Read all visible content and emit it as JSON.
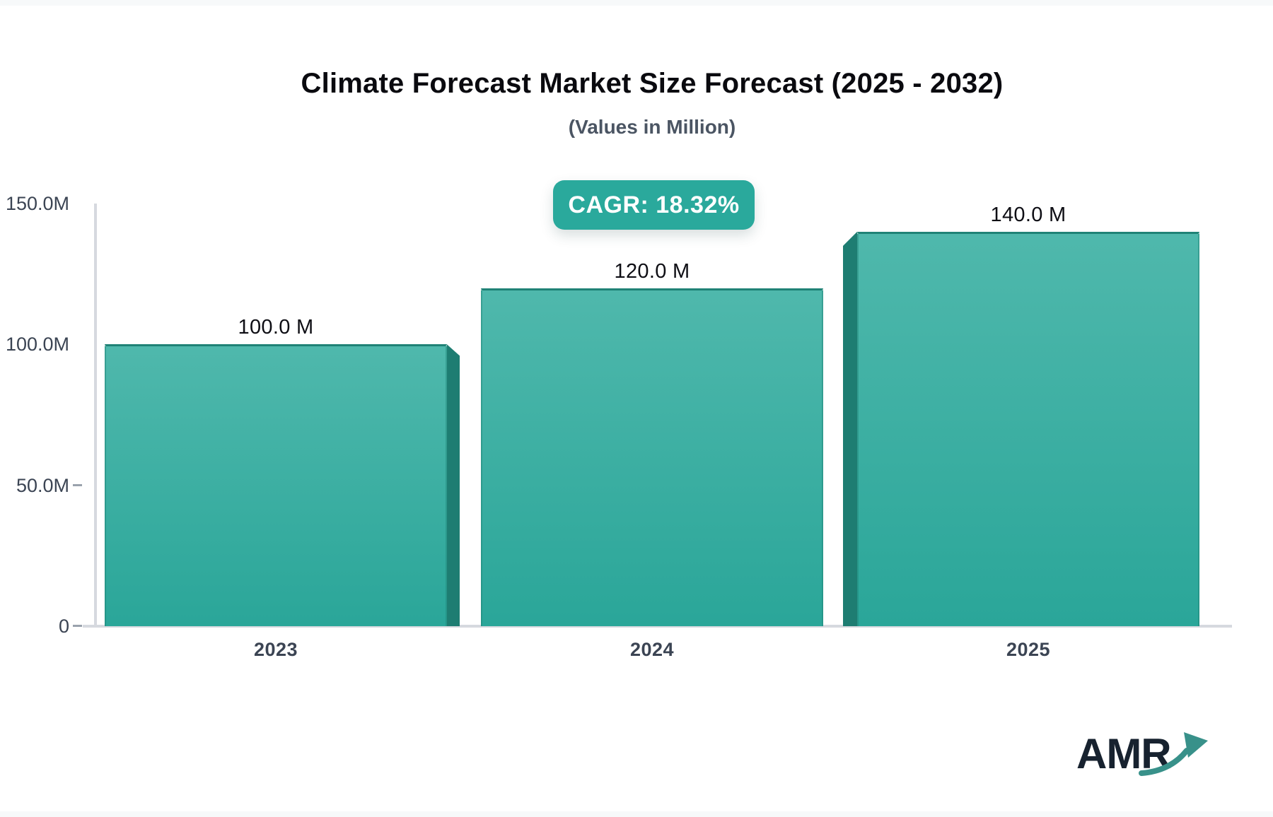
{
  "title": "Climate Forecast Market Size Forecast (2025 - 2032)",
  "subtitle": "(Values in Million)",
  "badge": {
    "label": "CAGR: 18.32%"
  },
  "logo": {
    "text": "AMR",
    "arrow_icon": "growth-arrow-icon"
  },
  "colors": {
    "accent_teal": "#2aa99c",
    "bar_gradient_top": "#4fb8ac",
    "bar_gradient_bottom": "#2aa699",
    "bar_top_border": "#1f8276",
    "bar_side_3d": "#1e7d72",
    "axis_line": "#d6d9df",
    "tick_dash": "#9aa2ad",
    "axis_text": "#3b4453",
    "title_text": "#0a0a0f",
    "subtitle_text": "#4b5563",
    "logo_navy": "#17222f",
    "logo_arrow_teal": "#38918a"
  },
  "chart_data": {
    "type": "bar",
    "title": "Climate Forecast Market Size Forecast (2025 - 2032)",
    "subtitle": "(Values in Million)",
    "unit": "Million",
    "cagr_annotation": "CAGR: 18.32%",
    "categories": [
      "2023",
      "2024",
      "2025"
    ],
    "values": [
      100,
      120,
      140
    ],
    "value_labels": [
      "100.0 M",
      "120.0 M",
      "140.0 M"
    ],
    "xlabel": "",
    "ylabel": "",
    "ylim": [
      0,
      150
    ],
    "yticks": [
      {
        "label": "150.0M",
        "value": 150,
        "dash": false
      },
      {
        "label": "100.0M",
        "value": 100,
        "dash": false
      },
      {
        "label": "50.0M",
        "value": 50,
        "dash": true
      },
      {
        "label": "0",
        "value": 0,
        "dash": true
      }
    ],
    "grid": false,
    "legend": false
  }
}
